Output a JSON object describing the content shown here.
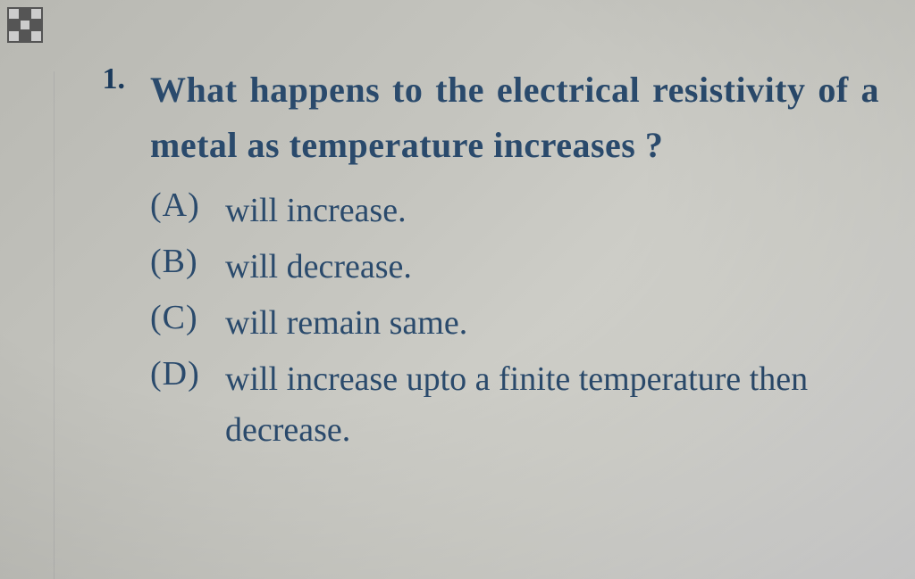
{
  "question": {
    "number": "1.",
    "text": "What happens to the electrical resistivity of a metal as temperature increases ?",
    "options": [
      {
        "letter": "(A)",
        "text": "will increase."
      },
      {
        "letter": "(B)",
        "text": "will decrease."
      },
      {
        "letter": "(C)",
        "text": "will remain same."
      },
      {
        "letter": "(D)",
        "text": "will increase upto a finite temperature then decrease."
      }
    ]
  },
  "style": {
    "text_color": "#2a4a6c",
    "number_color": "#1a3a5c",
    "bg_gradient_start": "#b8b8b2",
    "bg_gradient_end": "#dedede",
    "question_fontsize": 40,
    "option_fontsize": 38,
    "number_fontsize": 34,
    "font_family": "Times New Roman"
  }
}
